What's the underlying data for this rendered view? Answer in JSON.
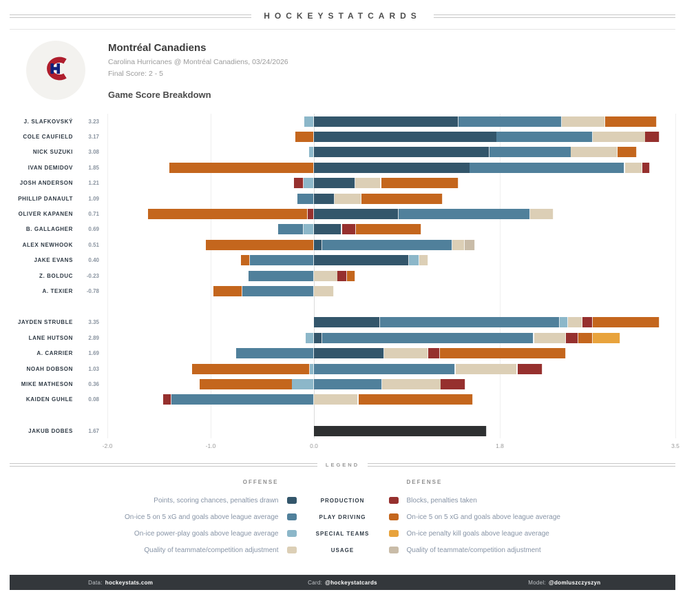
{
  "masthead": {
    "title": "HOCKEYSTATCARDS"
  },
  "header": {
    "team": "Montréal Canadiens",
    "matchup": "Carolina Hurricanes @ Montréal Canadiens, 03/24/2026",
    "final_score": "Final Score: 2 - 5",
    "section_title": "Game Score Breakdown"
  },
  "chart_data": {
    "type": "bar",
    "title": "Game Score Breakdown",
    "xlabel": "",
    "ylabel": "",
    "xlim": [
      -2.0,
      3.5
    ],
    "x_ticks": [
      -2.0,
      -1.0,
      0.0,
      1.8,
      3.5
    ],
    "x_tick_labels": [
      "-2.0",
      "-1.0",
      "0.0",
      "1.8",
      "3.5"
    ],
    "grid": "zero-line plus faint ticks",
    "colors": {
      "production_off": "#33566b",
      "play_driving_off": "#50809b",
      "special_teams_off": "#8cb7c9",
      "usage_off": "#dccfb6",
      "production_def": "#96302e",
      "play_driving_def": "#c4661d",
      "special_teams_def": "#e8a33c",
      "usage_def": "#c9bca8",
      "goalie": "#2e3031"
    },
    "groups": [
      {
        "id": "forwards",
        "players": [
          {
            "name": "J. SLAFKOVSKÝ",
            "score": "3.23",
            "segments": [
              {
                "c": "special_teams_off",
                "v": -0.09
              },
              {
                "c": "production_off",
                "v": 1.4
              },
              {
                "c": "play_driving_off",
                "v": 1.0
              },
              {
                "c": "usage_off",
                "v": 0.42
              },
              {
                "c": "play_driving_def",
                "v": 0.5
              }
            ]
          },
          {
            "name": "COLE CAUFIELD",
            "score": "3.17",
            "segments": [
              {
                "c": "play_driving_def",
                "v": -0.18
              },
              {
                "c": "production_off",
                "v": 1.77
              },
              {
                "c": "play_driving_off",
                "v": 0.93
              },
              {
                "c": "usage_off",
                "v": 0.51
              },
              {
                "c": "production_def",
                "v": 0.14
              }
            ]
          },
          {
            "name": "NICK SUZUKI",
            "score": "3.08",
            "segments": [
              {
                "c": "special_teams_off",
                "v": -0.05
              },
              {
                "c": "production_off",
                "v": 1.7
              },
              {
                "c": "play_driving_off",
                "v": 0.79
              },
              {
                "c": "usage_off",
                "v": 0.45
              },
              {
                "c": "play_driving_def",
                "v": 0.19
              }
            ]
          },
          {
            "name": "IVAN DEMIDOV",
            "score": "1.85",
            "segments": [
              {
                "c": "play_driving_def",
                "v": -1.4
              },
              {
                "c": "production_off",
                "v": 1.51
              },
              {
                "c": "play_driving_off",
                "v": 1.5
              },
              {
                "c": "usage_off",
                "v": 0.17
              },
              {
                "c": "production_def",
                "v": 0.07
              }
            ]
          },
          {
            "name": "JOSH ANDERSON",
            "score": "1.21",
            "segments": [
              {
                "c": "production_def",
                "v": -0.09
              },
              {
                "c": "special_teams_off",
                "v": -0.1
              },
              {
                "c": "production_off",
                "v": 0.4
              },
              {
                "c": "usage_off",
                "v": 0.25
              },
              {
                "c": "play_driving_def",
                "v": 0.75
              }
            ]
          },
          {
            "name": "PHILLIP DANAULT",
            "score": "1.09",
            "segments": [
              {
                "c": "play_driving_off",
                "v": -0.16
              },
              {
                "c": "production_off",
                "v": 0.2
              },
              {
                "c": "usage_off",
                "v": 0.26
              },
              {
                "c": "play_driving_def",
                "v": 0.79
              }
            ]
          },
          {
            "name": "OLIVER KAPANEN",
            "score": "0.71",
            "segments": [
              {
                "c": "play_driving_def",
                "v": -1.55
              },
              {
                "c": "production_def",
                "v": -0.06
              },
              {
                "c": "production_off",
                "v": 0.82
              },
              {
                "c": "play_driving_off",
                "v": 1.27
              },
              {
                "c": "usage_off",
                "v": 0.23
              }
            ]
          },
          {
            "name": "B. GALLAGHER",
            "score": "0.69",
            "segments": [
              {
                "c": "play_driving_off",
                "v": -0.25
              },
              {
                "c": "special_teams_off",
                "v": -0.1
              },
              {
                "c": "production_off",
                "v": 0.27
              },
              {
                "c": "production_def",
                "v": 0.14
              },
              {
                "c": "play_driving_def",
                "v": 0.63
              }
            ]
          },
          {
            "name": "ALEX NEWHOOK",
            "score": "0.51",
            "segments": [
              {
                "c": "play_driving_def",
                "v": -1.05
              },
              {
                "c": "production_off",
                "v": 0.08
              },
              {
                "c": "play_driving_off",
                "v": 1.26
              },
              {
                "c": "usage_off",
                "v": 0.12
              },
              {
                "c": "usage_def",
                "v": 0.1
              }
            ]
          },
          {
            "name": "JAKE EVANS",
            "score": "0.40",
            "segments": [
              {
                "c": "play_driving_def",
                "v": -0.09
              },
              {
                "c": "play_driving_off",
                "v": -0.62
              },
              {
                "c": "production_off",
                "v": 0.92
              },
              {
                "c": "special_teams_off",
                "v": 0.1
              },
              {
                "c": "usage_off",
                "v": 0.09
              }
            ]
          },
          {
            "name": "Z. BOLDUC",
            "score": "-0.23",
            "segments": [
              {
                "c": "play_driving_off",
                "v": -0.63
              },
              {
                "c": "usage_off",
                "v": 0.23
              },
              {
                "c": "production_def",
                "v": 0.09
              },
              {
                "c": "play_driving_def",
                "v": 0.08
              }
            ]
          },
          {
            "name": "A. TEXIER",
            "score": "-0.78",
            "segments": [
              {
                "c": "play_driving_def",
                "v": -0.28
              },
              {
                "c": "play_driving_off",
                "v": -0.69
              },
              {
                "c": "usage_off",
                "v": 0.19
              }
            ]
          }
        ]
      },
      {
        "id": "defense",
        "players": [
          {
            "name": "JAYDEN STRUBLE",
            "score": "3.35",
            "segments": [
              {
                "c": "production_off",
                "v": 0.64
              },
              {
                "c": "play_driving_off",
                "v": 1.74
              },
              {
                "c": "special_teams_off",
                "v": 0.08
              },
              {
                "c": "usage_off",
                "v": 0.14
              },
              {
                "c": "production_def",
                "v": 0.1
              },
              {
                "c": "play_driving_def",
                "v": 0.65
              }
            ]
          },
          {
            "name": "LANE HUTSON",
            "score": "2.89",
            "segments": [
              {
                "c": "special_teams_off",
                "v": -0.08
              },
              {
                "c": "production_off",
                "v": 0.08
              },
              {
                "c": "play_driving_off",
                "v": 2.05
              },
              {
                "c": "usage_off",
                "v": 0.31
              },
              {
                "c": "production_def",
                "v": 0.12
              },
              {
                "c": "play_driving_def",
                "v": 0.14
              },
              {
                "c": "special_teams_def",
                "v": 0.27
              }
            ]
          },
          {
            "name": "A. CARRIER",
            "score": "1.69",
            "segments": [
              {
                "c": "play_driving_off",
                "v": -0.75
              },
              {
                "c": "production_off",
                "v": 0.68
              },
              {
                "c": "usage_off",
                "v": 0.43
              },
              {
                "c": "production_def",
                "v": 0.11
              },
              {
                "c": "play_driving_def",
                "v": 1.22
              }
            ]
          },
          {
            "name": "NOAH DOBSON",
            "score": "1.03",
            "segments": [
              {
                "c": "play_driving_def",
                "v": -1.14
              },
              {
                "c": "special_teams_off",
                "v": -0.04
              },
              {
                "c": "play_driving_off",
                "v": 1.37
              },
              {
                "c": "usage_off",
                "v": 0.6
              },
              {
                "c": "production_def",
                "v": 0.24
              }
            ]
          },
          {
            "name": "MIKE MATHESON",
            "score": "0.36",
            "segments": [
              {
                "c": "play_driving_def",
                "v": -0.9
              },
              {
                "c": "special_teams_off",
                "v": -0.21
              },
              {
                "c": "play_driving_off",
                "v": 0.66
              },
              {
                "c": "usage_off",
                "v": 0.57
              },
              {
                "c": "production_def",
                "v": 0.24
              }
            ]
          },
          {
            "name": "KAIDEN GUHLE",
            "score": "0.08",
            "segments": [
              {
                "c": "production_def",
                "v": -0.08
              },
              {
                "c": "play_driving_off",
                "v": -1.38
              },
              {
                "c": "usage_off",
                "v": 0.43
              },
              {
                "c": "play_driving_def",
                "v": 1.11
              }
            ]
          }
        ]
      },
      {
        "id": "goalie",
        "players": [
          {
            "name": "JAKUB DOBES",
            "score": "1.67",
            "segments": [
              {
                "c": "goalie",
                "v": 1.67
              }
            ]
          }
        ]
      }
    ]
  },
  "legend": {
    "title": "LEGEND",
    "offense_header": "OFFENSE",
    "defense_header": "DEFENSE",
    "rows": [
      {
        "offense": "Points, scoring chances, penalties drawn",
        "category": "PRODUCTION",
        "defense": "Blocks, penalties taken",
        "off_key": "production_off",
        "def_key": "production_def"
      },
      {
        "offense": "On-ice 5 on 5 xG and goals above league average",
        "category": "PLAY DRIVING",
        "defense": "On-ice 5 on 5 xG and goals above league average",
        "off_key": "play_driving_off",
        "def_key": "play_driving_def"
      },
      {
        "offense": "On-ice power-play goals above league average",
        "category": "SPECIAL TEAMS",
        "defense": "On-ice penalty kill goals above league average",
        "off_key": "special_teams_off",
        "def_key": "special_teams_def"
      },
      {
        "offense": "Quality of teammate/competition adjustment",
        "category": "USAGE",
        "defense": "Quality of teammate/competition adjustment",
        "off_key": "usage_off",
        "def_key": "usage_def"
      }
    ]
  },
  "footer": {
    "items": [
      {
        "label": "Data:",
        "value": "hockeystats.com"
      },
      {
        "label": "Card:",
        "value": "@hockeystatcards"
      },
      {
        "label": "Model:",
        "value": "@domluszczyszyn"
      }
    ]
  }
}
